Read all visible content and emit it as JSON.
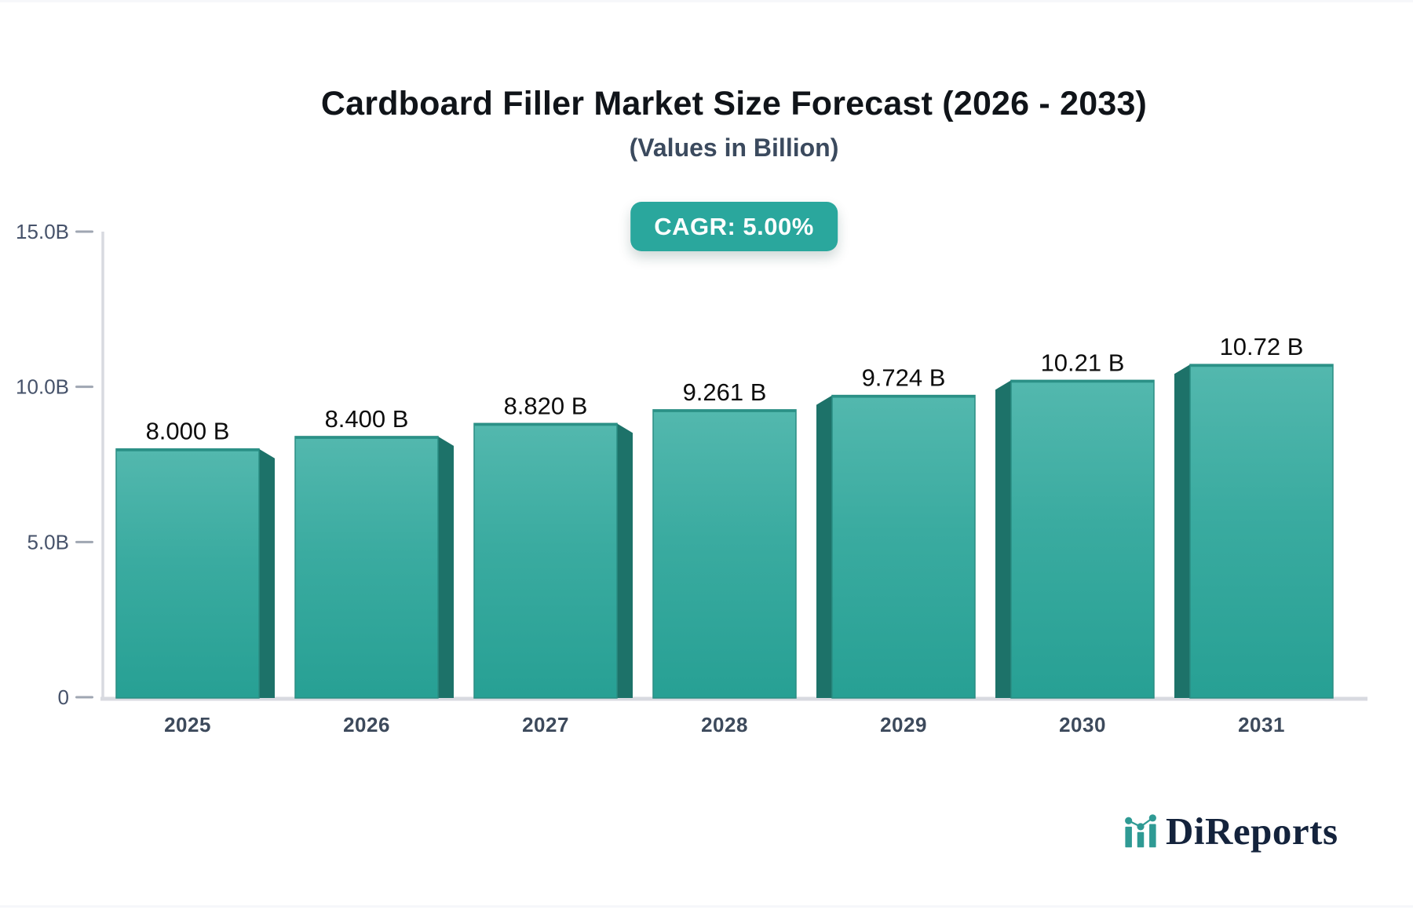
{
  "header": {
    "title": "Cardboard Filler Market Size Forecast (2026 - 2033)",
    "subtitle": "(Values in Billion)",
    "cagr_label": "CAGR: 5.00%"
  },
  "chart_data": {
    "type": "bar",
    "title": "Cardboard Filler Market Size Forecast (2026 - 2033)",
    "subtitle": "(Values in Billion)",
    "cagr": "5.00%",
    "unit": "Billion",
    "categories": [
      "2025",
      "2026",
      "2027",
      "2028",
      "2029",
      "2030",
      "2031"
    ],
    "values": [
      8.0,
      8.4,
      8.82,
      9.261,
      9.724,
      10.21,
      10.72
    ],
    "value_labels": [
      "8.000 B",
      "8.400 B",
      "8.820 B",
      "9.261 B",
      "9.724 B",
      "10.21 B",
      "10.72 B"
    ],
    "y_ticks": [
      {
        "value": 0,
        "label": "0"
      },
      {
        "value": 5,
        "label": "5.0B"
      },
      {
        "value": 10,
        "label": "10.0B"
      },
      {
        "value": 15,
        "label": "15.0B"
      }
    ],
    "ylim": [
      0,
      15
    ],
    "grid": false,
    "legend": false,
    "style": "3d-bars, perspective toward center"
  },
  "colors": {
    "bar_face_top": "#53b8ae",
    "bar_face_mid": "#3aaba0",
    "bar_face_bottom": "#27a094",
    "bar_side": "#1d7269",
    "bar_stroke": "#2a8d83",
    "bar_top_edge": "#2b9187",
    "badge_bg": "#2aa79d",
    "badge_text": "#ffffff",
    "axis_line": "#d8dae0",
    "tick_dash": "#9fa6b2",
    "tick_label": "#46526a",
    "category_label": "#3d4a5c",
    "value_label": "#0d0d0d",
    "title": "#101419",
    "subtitle": "#3b4a5e",
    "logo_text": "#14233c",
    "logo_icon": "#2f9a94"
  },
  "logo": {
    "text": "DiReports"
  }
}
